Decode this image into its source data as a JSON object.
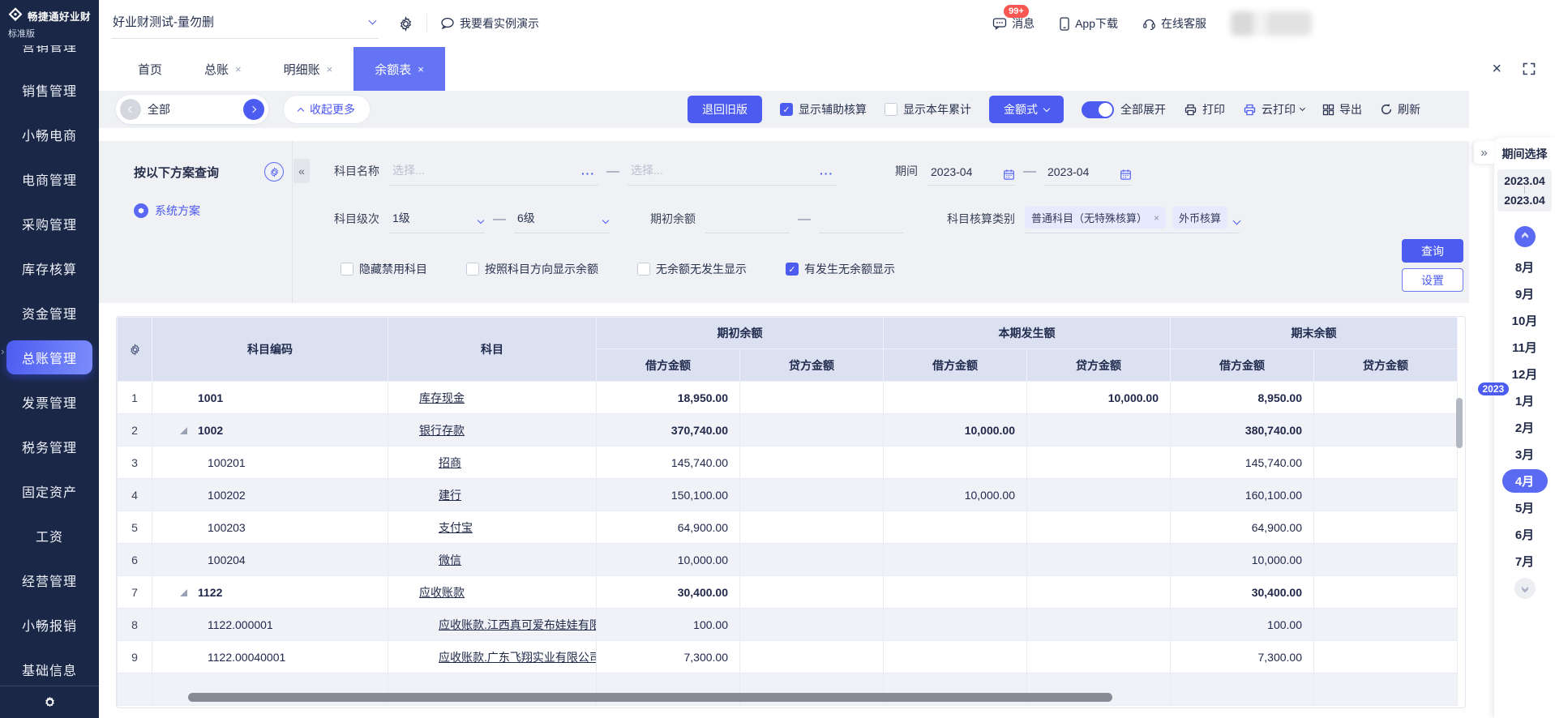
{
  "app": {
    "brand": "畅捷通好业财",
    "edition": "标准版",
    "account": "好业财测试-量勿删",
    "demo_link": "我要看实例演示",
    "messages": "消息",
    "messages_badge": "99+",
    "app_download": "App下载",
    "online_service": "在线客服"
  },
  "icons": {
    "gear": "⚙",
    "chat-bubble": "💬",
    "message": "🗨",
    "phone": "📱",
    "headset": "🎧",
    "printer": "🖨",
    "cloud-printer": "🖨",
    "export": "▦",
    "refresh": "⟳",
    "calendar": "📅",
    "close": "×",
    "fullscreen": "⛶",
    "collapse-left": "«",
    "collapse-right": "»",
    "more-dots": "···",
    "expand-triangle": "◢",
    "cube": "◆"
  },
  "tabs": [
    {
      "label": "首页",
      "closable": false,
      "active": false
    },
    {
      "label": "总账",
      "closable": true,
      "active": false
    },
    {
      "label": "明细账",
      "closable": true,
      "active": false
    },
    {
      "label": "余额表",
      "closable": true,
      "active": true
    }
  ],
  "sidebar": {
    "items": [
      {
        "label": "营销管理",
        "active": false,
        "partial": true
      },
      {
        "label": "销售管理",
        "active": false
      },
      {
        "label": "小畅电商",
        "active": false
      },
      {
        "label": "电商管理",
        "active": false
      },
      {
        "label": "采购管理",
        "active": false
      },
      {
        "label": "库存核算",
        "active": false
      },
      {
        "label": "资金管理",
        "active": false
      },
      {
        "label": "总账管理",
        "active": true
      },
      {
        "label": "发票管理",
        "active": false
      },
      {
        "label": "税务管理",
        "active": false
      },
      {
        "label": "固定资产",
        "active": false
      },
      {
        "label": "工资",
        "active": false
      },
      {
        "label": "经营管理",
        "active": false
      },
      {
        "label": "小畅报销",
        "active": false
      },
      {
        "label": "基础信息",
        "active": false
      }
    ]
  },
  "toolbar": {
    "scope": "全部",
    "collapse": "收起更多",
    "legacy_button": "退回旧版",
    "show_aux": "显示辅助核算",
    "show_aux_checked": true,
    "show_ytd": "显示本年累计",
    "show_ytd_checked": false,
    "amount_style": "金额式",
    "expand_all": "全部展开",
    "print": "打印",
    "cloud_print": "云打印",
    "export": "导出",
    "refresh": "刷新"
  },
  "filters": {
    "plan_title": "按以下方案查询",
    "plan_item": "系统方案",
    "subject_name_label": "科目名称",
    "select_placeholder": "选择...",
    "more_dots": "···",
    "dash": "—",
    "period_label": "期间",
    "period_from": "2023-04",
    "period_to": "2023-04",
    "level_label": "科目级次",
    "level_from": "1级",
    "level_to": "6级",
    "opening_label": "期初余额",
    "category_label": "科目核算类别",
    "tag1": "普通科目（无特殊核算）",
    "tag2": "外币核算",
    "checkboxes": [
      {
        "label": "隐藏禁用科目",
        "checked": false
      },
      {
        "label": "按照科目方向显示余额",
        "checked": false
      },
      {
        "label": "无余额无发生显示",
        "checked": false
      },
      {
        "label": "有发生无余额显示",
        "checked": true
      }
    ],
    "query": "查询",
    "settings": "设置"
  },
  "period_panel": {
    "title": "期间选择",
    "from": "2023.04",
    "to": "2023.04",
    "year_badge": "2023",
    "months": [
      {
        "label": "8月"
      },
      {
        "label": "9月"
      },
      {
        "label": "10月"
      },
      {
        "label": "11月"
      },
      {
        "label": "12月"
      },
      {
        "label": "1月",
        "year": "2023"
      },
      {
        "label": "2月"
      },
      {
        "label": "3月"
      },
      {
        "label": "4月",
        "active": true
      },
      {
        "label": "5月"
      },
      {
        "label": "6月"
      },
      {
        "label": "7月"
      }
    ]
  },
  "table": {
    "code_header": "科目编码",
    "subject_header": "科目",
    "group_headers": [
      "期初余额",
      "本期发生额",
      "期末余额"
    ],
    "sub_headers": [
      "借方金额",
      "贷方金额"
    ],
    "rows": [
      {
        "num": "1",
        "code": "1001",
        "name": "库存现金",
        "level": 1,
        "expandable": false,
        "cells": [
          "18,950.00",
          "",
          "",
          "10,000.00",
          "8,950.00",
          ""
        ]
      },
      {
        "num": "2",
        "code": "1002",
        "name": "银行存款",
        "level": 1,
        "expandable": true,
        "cells": [
          "370,740.00",
          "",
          "10,000.00",
          "",
          "380,740.00",
          ""
        ]
      },
      {
        "num": "3",
        "code": "100201",
        "name": "招商",
        "level": 2,
        "expandable": false,
        "cells": [
          "145,740.00",
          "",
          "",
          "",
          "145,740.00",
          ""
        ]
      },
      {
        "num": "4",
        "code": "100202",
        "name": "建行",
        "level": 2,
        "expandable": false,
        "cells": [
          "150,100.00",
          "",
          "10,000.00",
          "",
          "160,100.00",
          ""
        ]
      },
      {
        "num": "5",
        "code": "100203",
        "name": "支付宝",
        "level": 2,
        "expandable": false,
        "cells": [
          "64,900.00",
          "",
          "",
          "",
          "64,900.00",
          ""
        ]
      },
      {
        "num": "6",
        "code": "100204",
        "name": "微信",
        "level": 2,
        "expandable": false,
        "cells": [
          "10,000.00",
          "",
          "",
          "",
          "10,000.00",
          ""
        ]
      },
      {
        "num": "7",
        "code": "1122",
        "name": "应收账款",
        "level": 1,
        "expandable": true,
        "cells": [
          "30,400.00",
          "",
          "",
          "",
          "30,400.00",
          ""
        ]
      },
      {
        "num": "8",
        "code": "1122.000001",
        "name": "应收账款.江西真可爱布娃娃有限责任",
        "level": 2,
        "expandable": false,
        "cells": [
          "100.00",
          "",
          "",
          "",
          "100.00",
          ""
        ]
      },
      {
        "num": "9",
        "code": "1122.00040001",
        "name": "应收账款.广东飞翔实业有限公司",
        "level": 2,
        "expandable": false,
        "cells": [
          "7,300.00",
          "",
          "",
          "",
          "7,300.00",
          ""
        ]
      }
    ]
  }
}
